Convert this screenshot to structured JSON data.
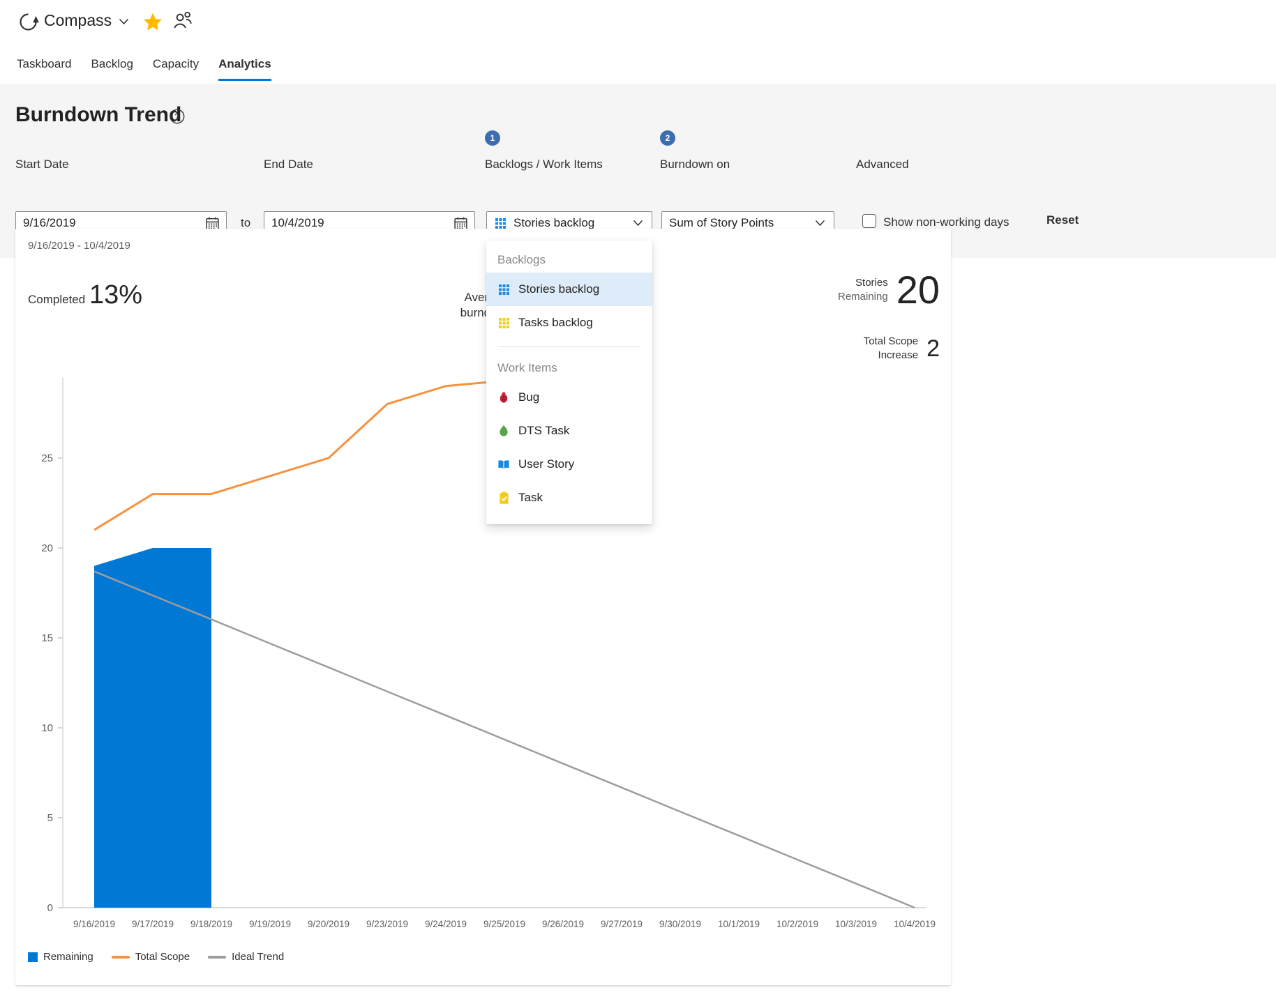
{
  "header": {
    "project_name": "Compass",
    "tabs": [
      {
        "label": "Taskboard",
        "active": false
      },
      {
        "label": "Backlog",
        "active": false
      },
      {
        "label": "Capacity",
        "active": false
      },
      {
        "label": "Analytics",
        "active": true
      }
    ]
  },
  "page": {
    "title": "Burndown Trend"
  },
  "filters": {
    "start_date": {
      "label": "Start Date",
      "value": "9/16/2019"
    },
    "to_label": "to",
    "end_date": {
      "label": "End Date",
      "value": "10/4/2019"
    },
    "backlog_picker": {
      "step_badge": "1",
      "label": "Backlogs / Work Items",
      "value": "Stories backlog",
      "icon": "backlog-blue"
    },
    "burndown_on": {
      "step_badge": "2",
      "label": "Burndown on",
      "value": "Sum of Story Points"
    },
    "advanced_label": "Advanced",
    "show_nonworking_label": "Show non-working days",
    "show_nonworking_checked": false,
    "reset_label": "Reset"
  },
  "dropdown": {
    "sections": [
      {
        "header": "Backlogs",
        "items": [
          {
            "label": "Stories backlog",
            "icon": "backlog-blue",
            "selected": true
          },
          {
            "label": "Tasks backlog",
            "icon": "backlog-yellow",
            "selected": false
          }
        ]
      },
      {
        "header": "Work Items",
        "items": [
          {
            "label": "Bug",
            "icon": "bug",
            "selected": false
          },
          {
            "label": "DTS Task",
            "icon": "dts-task",
            "selected": false
          },
          {
            "label": "User Story",
            "icon": "user-story",
            "selected": false
          },
          {
            "label": "Task",
            "icon": "task",
            "selected": false
          }
        ]
      }
    ]
  },
  "stats": {
    "date_range": "9/16/2019 - 10/4/2019",
    "completed_label": "Completed",
    "completed_value": "13%",
    "average_burndown_label": "Average burndown",
    "stories_remaining_label_1": "Stories",
    "stories_remaining_label_2": "Remaining",
    "stories_remaining_value": "20",
    "scope_increase_label_1": "Total Scope",
    "scope_increase_label_2": "Increase",
    "scope_increase_value": "2"
  },
  "chart_data": {
    "type": "area",
    "title": "Burndown Trend",
    "x": [
      "9/16/2019",
      "9/17/2019",
      "9/18/2019",
      "9/19/2019",
      "9/20/2019",
      "9/23/2019",
      "9/24/2019",
      "9/25/2019",
      "9/26/2019",
      "9/27/2019",
      "9/30/2019",
      "10/1/2019",
      "10/2/2019",
      "10/3/2019",
      "10/4/2019"
    ],
    "yticks": [
      0,
      5,
      10,
      15,
      20,
      25
    ],
    "ylim": [
      0,
      29.3
    ],
    "grid": false,
    "legend_position": "bottom",
    "series": [
      {
        "name": "Remaining",
        "type": "area",
        "color": "#0078d4",
        "values": [
          19,
          20,
          20,
          null,
          null,
          null,
          null,
          null,
          null,
          null,
          null,
          null,
          null,
          null,
          null
        ]
      },
      {
        "name": "Total Scope",
        "type": "line",
        "color": "#f7913d",
        "values": [
          21,
          23,
          23,
          24,
          25,
          28,
          29,
          29.3,
          null,
          null,
          null,
          null,
          null,
          null,
          null
        ]
      },
      {
        "name": "Ideal Trend",
        "type": "line",
        "color": "#9d9d9d",
        "values": [
          18.7,
          17.36,
          16.03,
          14.69,
          13.36,
          12.02,
          10.69,
          9.35,
          8.01,
          6.68,
          5.34,
          4.01,
          2.67,
          1.34,
          0
        ]
      }
    ]
  }
}
